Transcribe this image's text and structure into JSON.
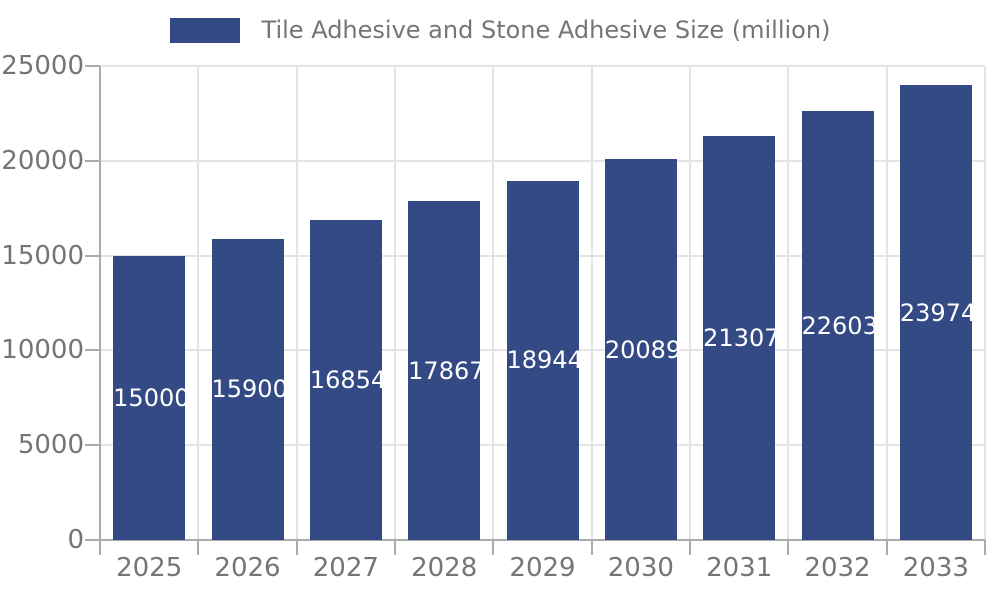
{
  "legend": {
    "label": "Tile Adhesive and Stone Adhesive Size (million)"
  },
  "chart_data": {
    "type": "bar",
    "title": "Tile Adhesive and Stone Adhesive Size (million)",
    "categories": [
      "2025",
      "2026",
      "2027",
      "2028",
      "2029",
      "2030",
      "2031",
      "2032",
      "2033"
    ],
    "values": [
      15000,
      15900,
      16854,
      17867,
      18944,
      20089,
      21307,
      22603,
      23974
    ],
    "xlabel": "",
    "ylabel": "",
    "ylim": [
      0,
      25000
    ],
    "yticks": [
      0,
      5000,
      10000,
      15000,
      20000,
      25000
    ],
    "grid": true,
    "legend_position": "top",
    "value_labels": "inside-center",
    "colors": {
      "bar": "#344a84",
      "value_label": "#ffffff",
      "axis_text": "#757575",
      "grid_line": "#e4e4e8",
      "axis_line": "#ababab"
    }
  }
}
